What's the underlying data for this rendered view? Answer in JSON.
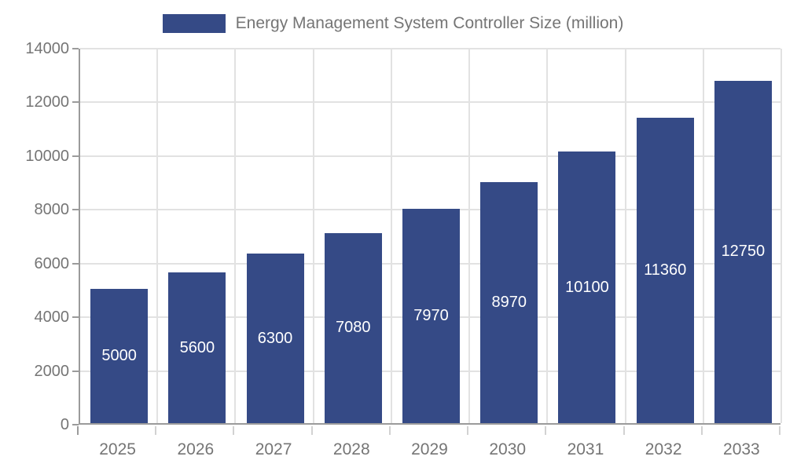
{
  "chart_data": {
    "type": "bar",
    "title": "Energy Management System Controller Size (million)",
    "series_name": "Energy Management System Controller Size (million)",
    "categories": [
      "2025",
      "2026",
      "2027",
      "2028",
      "2029",
      "2030",
      "2031",
      "2032",
      "2033"
    ],
    "values": [
      5000,
      5600,
      6300,
      7080,
      7970,
      8970,
      10100,
      11360,
      12750
    ],
    "data_labels": [
      "5000",
      "5600",
      "6300",
      "7080",
      "7970",
      "8970",
      "10100",
      "11360",
      "12750"
    ],
    "xlabel": "",
    "ylabel": "",
    "ylim": [
      0,
      14000
    ],
    "yticks": [
      0,
      2000,
      4000,
      6000,
      8000,
      10000,
      12000,
      14000
    ],
    "grid": "on",
    "legend_position": "top",
    "colors": {
      "bar": "#354A86",
      "bar_label_text": "#ffffff",
      "axis_text": "#757575",
      "gridline": "#e2e2e2",
      "axis_line": "#9b9b9b",
      "minor_tick": "#d2d2d2"
    }
  }
}
